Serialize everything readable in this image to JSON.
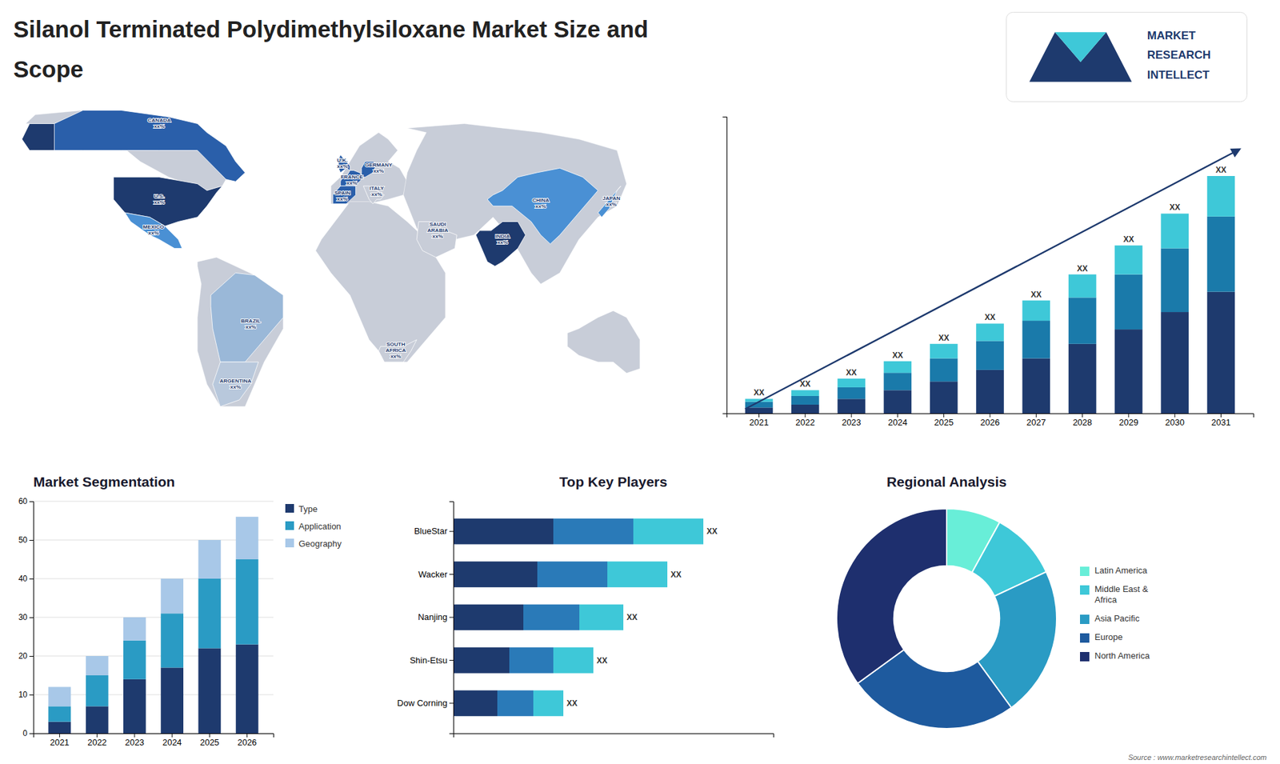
{
  "title": "Silanol Terminated Polydimethylsiloxane Market Size and\nScope",
  "annotations": [
    "MARKET",
    "RESEARCH",
    "INTELLECT",
    "Source : www.marketresearchintellect.com"
  ],
  "chart_data": [
    {
      "type": "bar",
      "stacked": true,
      "categories": [
        "2021",
        "2022",
        "2023",
        "2024",
        "2025",
        "2026",
        "2027",
        "2028",
        "2029",
        "2030",
        "2031"
      ],
      "series": [
        {
          "color": "#1e3a6e",
          "values": [
            2,
            3,
            5,
            8,
            11,
            15,
            19,
            24,
            29,
            35,
            42
          ]
        },
        {
          "color": "#1a7aaa",
          "values": [
            2,
            3,
            4,
            6,
            8,
            10,
            13,
            16,
            19,
            22,
            26
          ]
        },
        {
          "color": "#3ec8d8",
          "values": [
            1,
            2,
            3,
            4,
            5,
            6,
            7,
            8,
            10,
            12,
            14
          ]
        }
      ],
      "ylim": [
        0,
        102.5
      ],
      "tick_labels": "x",
      "annotations": [
        "XX",
        "XX",
        "XX",
        "XX",
        "XX",
        "XX",
        "XX",
        "XX",
        "XX",
        "XX",
        "XX"
      ]
    },
    {
      "type": "map",
      "annotations": [
        "CANADA\nxx%",
        "U.S.\nxx%",
        "MEXICO\nxx%",
        "BRAZIL\nxx%",
        "ARGENTINA\nxx%",
        "U.K.\nxx%",
        "FRANCE\nxx%",
        "SPAIN\nxx%",
        "GERMANY\nxx%",
        "ITALY\nxx%",
        "SAUDI\nARABIA\nxx%",
        "SOUTH\nAFRICA\nxx%",
        "CHINA\nxx%",
        "INDIA\nxx%",
        "JAPAN\nxx%"
      ]
    },
    {
      "type": "bar",
      "stacked": true,
      "title": "Market Segmentation",
      "categories": [
        "2021",
        "2022",
        "2023",
        "2024",
        "2025",
        "2026"
      ],
      "series": [
        {
          "name": "Type",
          "color": "#1e3a6e",
          "values": [
            3,
            7,
            14,
            17,
            22,
            23
          ]
        },
        {
          "name": "Application",
          "color": "#2a9bc4",
          "values": [
            4,
            8,
            10,
            14,
            18,
            22
          ]
        },
        {
          "name": "Geography",
          "color": "#a8c8e8",
          "values": [
            5,
            5,
            6,
            9,
            10,
            11
          ]
        }
      ],
      "ylim": [
        0,
        60
      ],
      "yticks": [
        0,
        10,
        20,
        30,
        40,
        50,
        60
      ],
      "grid": true,
      "legend": "right"
    },
    {
      "type": "bar",
      "stacked": true,
      "orientation": "horizontal",
      "title": "Top Key Players",
      "categories": [
        "BlueStar",
        "Wacker",
        "Nanjing",
        "Shin-Etsu",
        "Dow Corning"
      ],
      "series": [
        {
          "color": "#1e3a6e",
          "values": [
            5.0,
            4.2,
            3.5,
            2.8,
            2.2
          ]
        },
        {
          "color": "#2a7ab8",
          "values": [
            4.0,
            3.5,
            2.8,
            2.2,
            1.8
          ]
        },
        {
          "color": "#3ec8d8",
          "values": [
            3.5,
            3.0,
            2.2,
            2.0,
            1.5
          ]
        }
      ],
      "xlim": [
        0,
        16
      ],
      "tick_labels": "y",
      "annotations": [
        "XX",
        "XX",
        "XX",
        "XX",
        "XX"
      ]
    },
    {
      "type": "pie",
      "title": "Regional Analysis",
      "categories": [
        "Latin America",
        "Middle East &\nAfrica",
        "Asia Pacific",
        "Europe",
        "North America"
      ],
      "values": [
        8,
        10,
        22,
        25,
        35
      ],
      "colors": [
        "#68eed8",
        "#3ec8d8",
        "#2a9bc4",
        "#1e5a9e",
        "#1e2f6e"
      ],
      "legend": "right"
    }
  ]
}
